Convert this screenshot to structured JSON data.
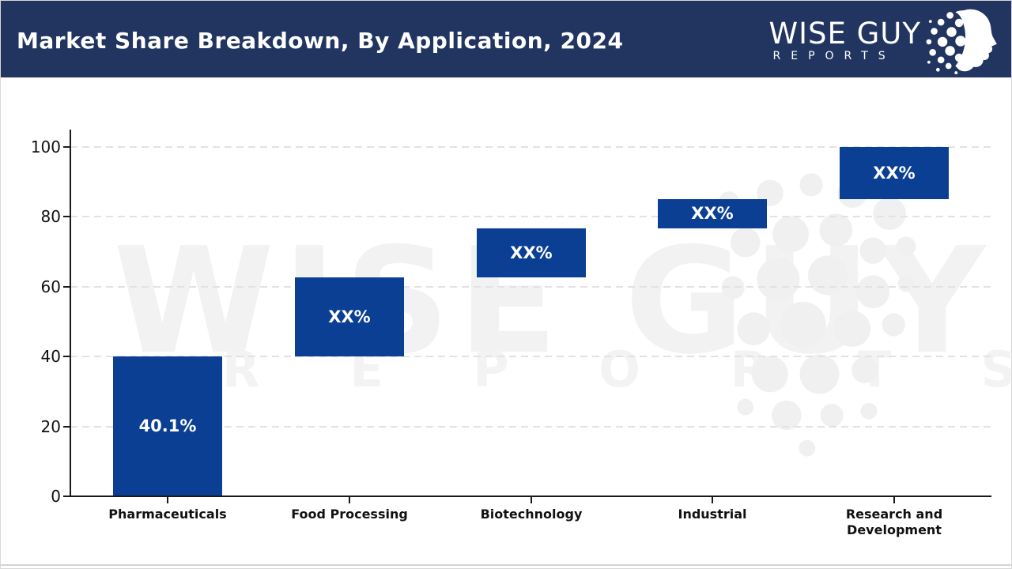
{
  "header": {
    "title": "Market Share Breakdown, By Application, 2024",
    "bg_color": "#213560",
    "logo": {
      "line1": "WISE GUY",
      "line2": "REPORTS"
    }
  },
  "watermark": {
    "line1": "WISE GUY",
    "line2": "R E P O R T S"
  },
  "chart_data": {
    "type": "bar",
    "subtype": "waterfall",
    "title": "Market Share Breakdown, By Application, 2024",
    "xlabel": "",
    "ylabel": "",
    "categories": [
      "Pharmaceuticals",
      "Food Processing",
      "Biotechnology",
      "Industrial",
      "Research and Development"
    ],
    "segments": [
      {
        "category": "Pharmaceuticals",
        "start": 0,
        "end": 40.1,
        "label": "40.1%"
      },
      {
        "category": "Food Processing",
        "start": 40.1,
        "end": 62.6,
        "label": "XX%"
      },
      {
        "category": "Biotechnology",
        "start": 62.6,
        "end": 76.7,
        "label": "XX%"
      },
      {
        "category": "Industrial",
        "start": 76.7,
        "end": 85.1,
        "label": "XX%"
      },
      {
        "category": "Research and Development",
        "start": 85.1,
        "end": 100,
        "label": "XX%"
      }
    ],
    "y_ticks": [
      0,
      20,
      40,
      60,
      80,
      100
    ],
    "ylim": [
      0,
      104.5
    ],
    "grid": "horizontal-dashed",
    "legend": "none",
    "bar_color": "#0A3F94",
    "bar_label_color": "#ffffff",
    "grid_color": "#e2e2e2",
    "axis_color": "#1a1a1a"
  }
}
